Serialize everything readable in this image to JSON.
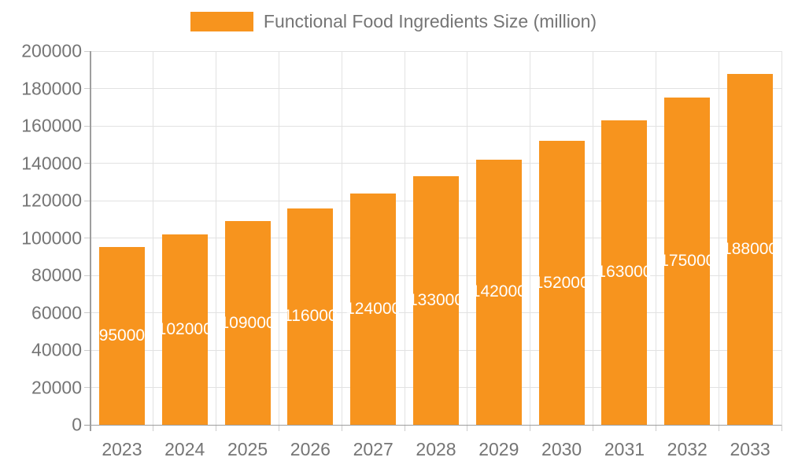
{
  "chart_data": {
    "type": "bar",
    "title": "Functional Food Ingredients Size (million)",
    "legend": [
      "Functional Food Ingredients Size (million)"
    ],
    "legend_position": "top",
    "categories": [
      "2023",
      "2024",
      "2025",
      "2026",
      "2027",
      "2028",
      "2029",
      "2030",
      "2031",
      "2032",
      "2033"
    ],
    "series": [
      {
        "name": "Functional Food Ingredients Size (million)",
        "values": [
          95000,
          102000,
          109000,
          116000,
          124000,
          133000,
          142000,
          152000,
          163000,
          175000,
          188000
        ]
      }
    ],
    "data_labels": [
      "95000",
      "102000",
      "109000",
      "116000",
      "124000",
      "133000",
      "142000",
      "152000",
      "163000",
      "175000",
      "188000"
    ],
    "xlabel": "",
    "ylabel": "",
    "ylim": [
      0,
      200000
    ],
    "ytick_step": 20000,
    "ytick_labels": [
      "0",
      "20000",
      "40000",
      "60000",
      "80000",
      "100000",
      "120000",
      "140000",
      "160000",
      "180000",
      "200000"
    ],
    "grid": true,
    "colors": {
      "bar": "#F7941E",
      "bar_label": "#FFFFFF",
      "axis_text": "#757575",
      "grid_line": "#E2E2E2",
      "axis_line": "#9E9E9E",
      "tick": "#CCCCCC",
      "background": "#FFFFFF"
    }
  }
}
